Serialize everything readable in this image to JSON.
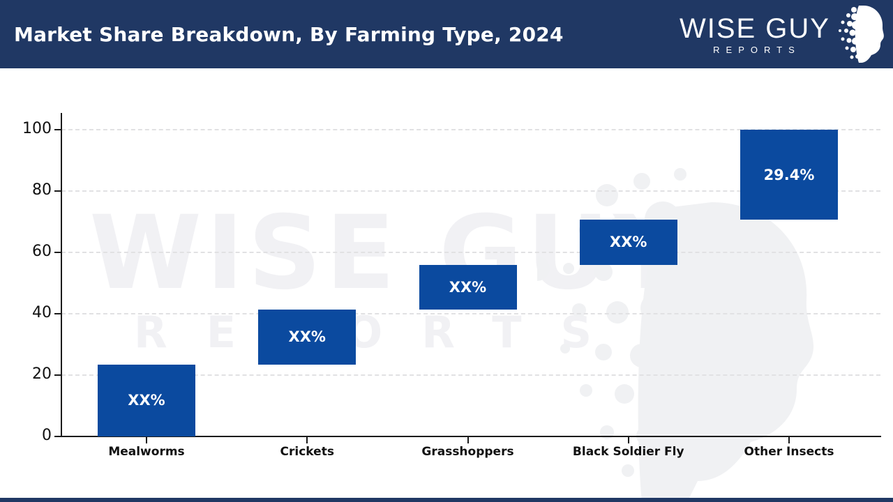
{
  "header": {
    "title": "Market Share Breakdown, By Farming Type, 2024",
    "logo": {
      "line1": "WISE GUY",
      "line2": "REPORTS"
    }
  },
  "watermark": {
    "line1": "WISE GUY",
    "line2": "REPORTS"
  },
  "colors": {
    "header_bg": "#203864",
    "bar_fill": "#0b4a9f",
    "bar_label_text": "#ffffff",
    "gridline": "#e1e1e3",
    "axis": "#1a1a1a",
    "watermark_text": "#f1f1f4"
  },
  "chart_data": {
    "type": "bar",
    "subtype": "waterfall-floating-bars",
    "title": "Market Share Breakdown, By Farming Type, 2024",
    "categories": [
      "Mealworms",
      "Crickets",
      "Grasshoppers",
      "Black Soldier Fly",
      "Other Insects"
    ],
    "series": [
      {
        "name": "Market Share (%)",
        "segments": [
          {
            "category": "Mealworms",
            "start": 0,
            "end": 23.5,
            "label": "XX%"
          },
          {
            "category": "Crickets",
            "start": 23.5,
            "end": 41.3,
            "label": "XX%"
          },
          {
            "category": "Grasshoppers",
            "start": 41.3,
            "end": 56.0,
            "label": "XX%"
          },
          {
            "category": "Black Soldier Fly",
            "start": 56.0,
            "end": 70.6,
            "label": "XX%"
          },
          {
            "category": "Other Insects",
            "start": 70.6,
            "end": 100,
            "label": "29.4%"
          }
        ]
      }
    ],
    "xlabel": "",
    "ylabel": "",
    "ylim": [
      0,
      110
    ],
    "yticks": [
      0,
      20,
      40,
      60,
      80,
      100
    ],
    "grid": "horizontal-dashed",
    "legend": "none"
  }
}
